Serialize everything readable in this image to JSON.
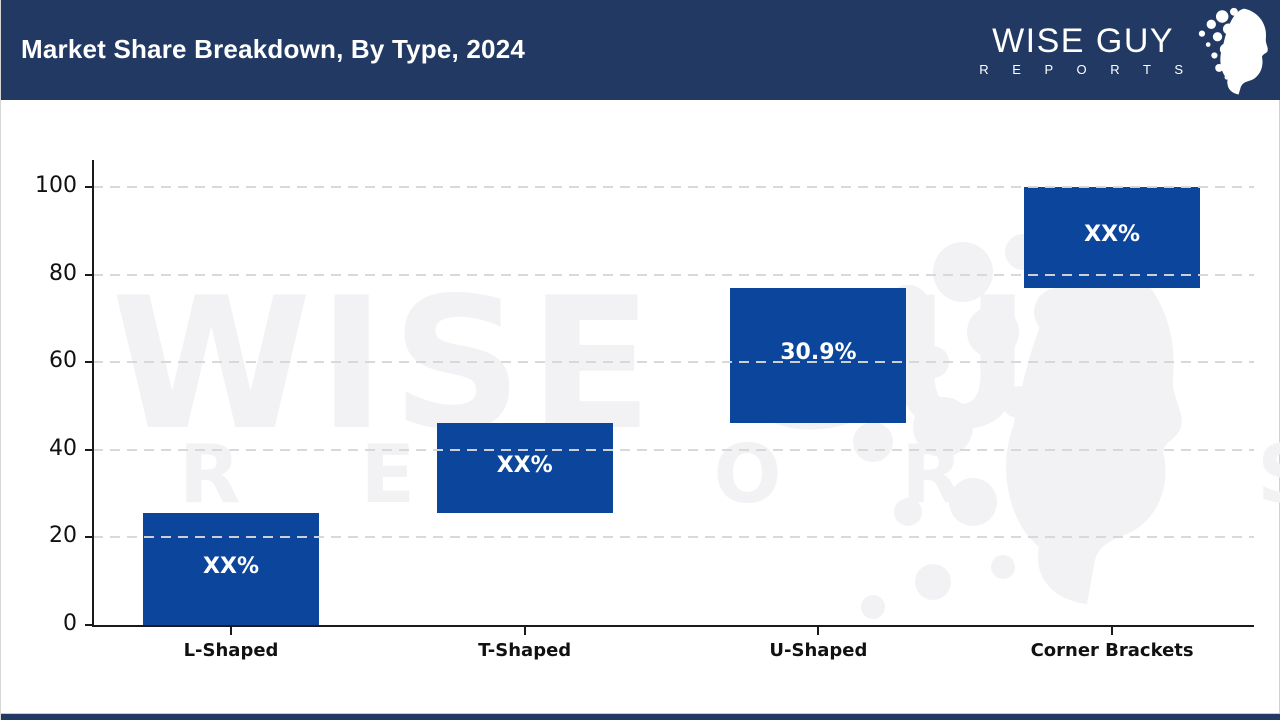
{
  "header": {
    "title": "Market Share Breakdown, By Type, 2024",
    "logo": {
      "line1": "WISE GUY",
      "line2": "R E P O R T S"
    }
  },
  "watermark": {
    "line1": "WISE GU",
    "line2": "R E P O R T S"
  },
  "colors": {
    "header_bg": "#223A63",
    "footer_bg": "#223A63",
    "bar": "#0C459C",
    "axis": "#1A1A1A",
    "grid": "#D7D7D7",
    "bar_label_text": "#FFFFFF",
    "tick_text": "#111111",
    "watermark": "#F2F2F4"
  },
  "chart_data": {
    "type": "bar",
    "subtype": "waterfall-floating",
    "title": "Market Share Breakdown, By Type, 2024",
    "categories": [
      "L-Shaped",
      "T-Shaped",
      "U-Shaped",
      "Corner Brackets"
    ],
    "segments": [
      {
        "category": "L-Shaped",
        "start": 0,
        "end": 25.6,
        "label": "XX%"
      },
      {
        "category": "T-Shaped",
        "start": 25.6,
        "end": 46.1,
        "label": "XX%"
      },
      {
        "category": "U-Shaped",
        "start": 46.1,
        "end": 77.0,
        "label": "30.9%"
      },
      {
        "category": "Corner Brackets",
        "start": 77.0,
        "end": 100,
        "label": "XX%"
      }
    ],
    "yticks": [
      0,
      20,
      40,
      60,
      80,
      100
    ],
    "ylim": [
      0,
      106
    ],
    "xlabel": "",
    "ylabel": "",
    "grid": "horizontal-dashed",
    "legend": "none"
  }
}
